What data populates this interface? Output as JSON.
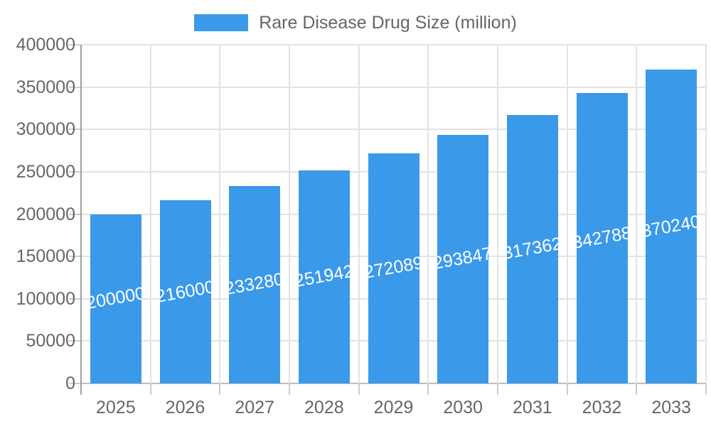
{
  "chart_data": {
    "type": "bar",
    "title": "",
    "legend": {
      "label": "Rare Disease Drug Size (million)",
      "position": "top-center"
    },
    "categories": [
      "2025",
      "2026",
      "2027",
      "2028",
      "2029",
      "2030",
      "2031",
      "2032",
      "2033"
    ],
    "series": [
      {
        "name": "Rare Disease Drug Size (million)",
        "values": [
          200000,
          216000,
          233280,
          251942,
          272089,
          293847,
          317362,
          342788,
          370240
        ]
      }
    ],
    "data_labels": {
      "visible": true,
      "position": "inside-center",
      "rotation_deg": -10,
      "texts": [
        "200000",
        "216000",
        "233280",
        "251942",
        "272089",
        "293847",
        "317362",
        "342788",
        "370240"
      ]
    },
    "y_axis": {
      "min": 0,
      "max": 400000,
      "tick_step": 50000,
      "tick_labels": [
        "0",
        "50000",
        "100000",
        "150000",
        "200000",
        "250000",
        "300000",
        "350000",
        "400000"
      ]
    },
    "x_axis": {
      "tick_labels": [
        "2025",
        "2026",
        "2027",
        "2028",
        "2029",
        "2030",
        "2031",
        "2032",
        "2033"
      ]
    },
    "grid": {
      "horizontal": true,
      "vertical": true
    },
    "colors": {
      "bar": "#3b99ea",
      "grid": "#e3e3e3",
      "tick": "#cccccc",
      "axis_line": "#9e9e9e",
      "baseline": "#bdbdbd",
      "axis_text": "#666666",
      "data_label_text": "#ffffff",
      "background": "#ffffff"
    }
  }
}
